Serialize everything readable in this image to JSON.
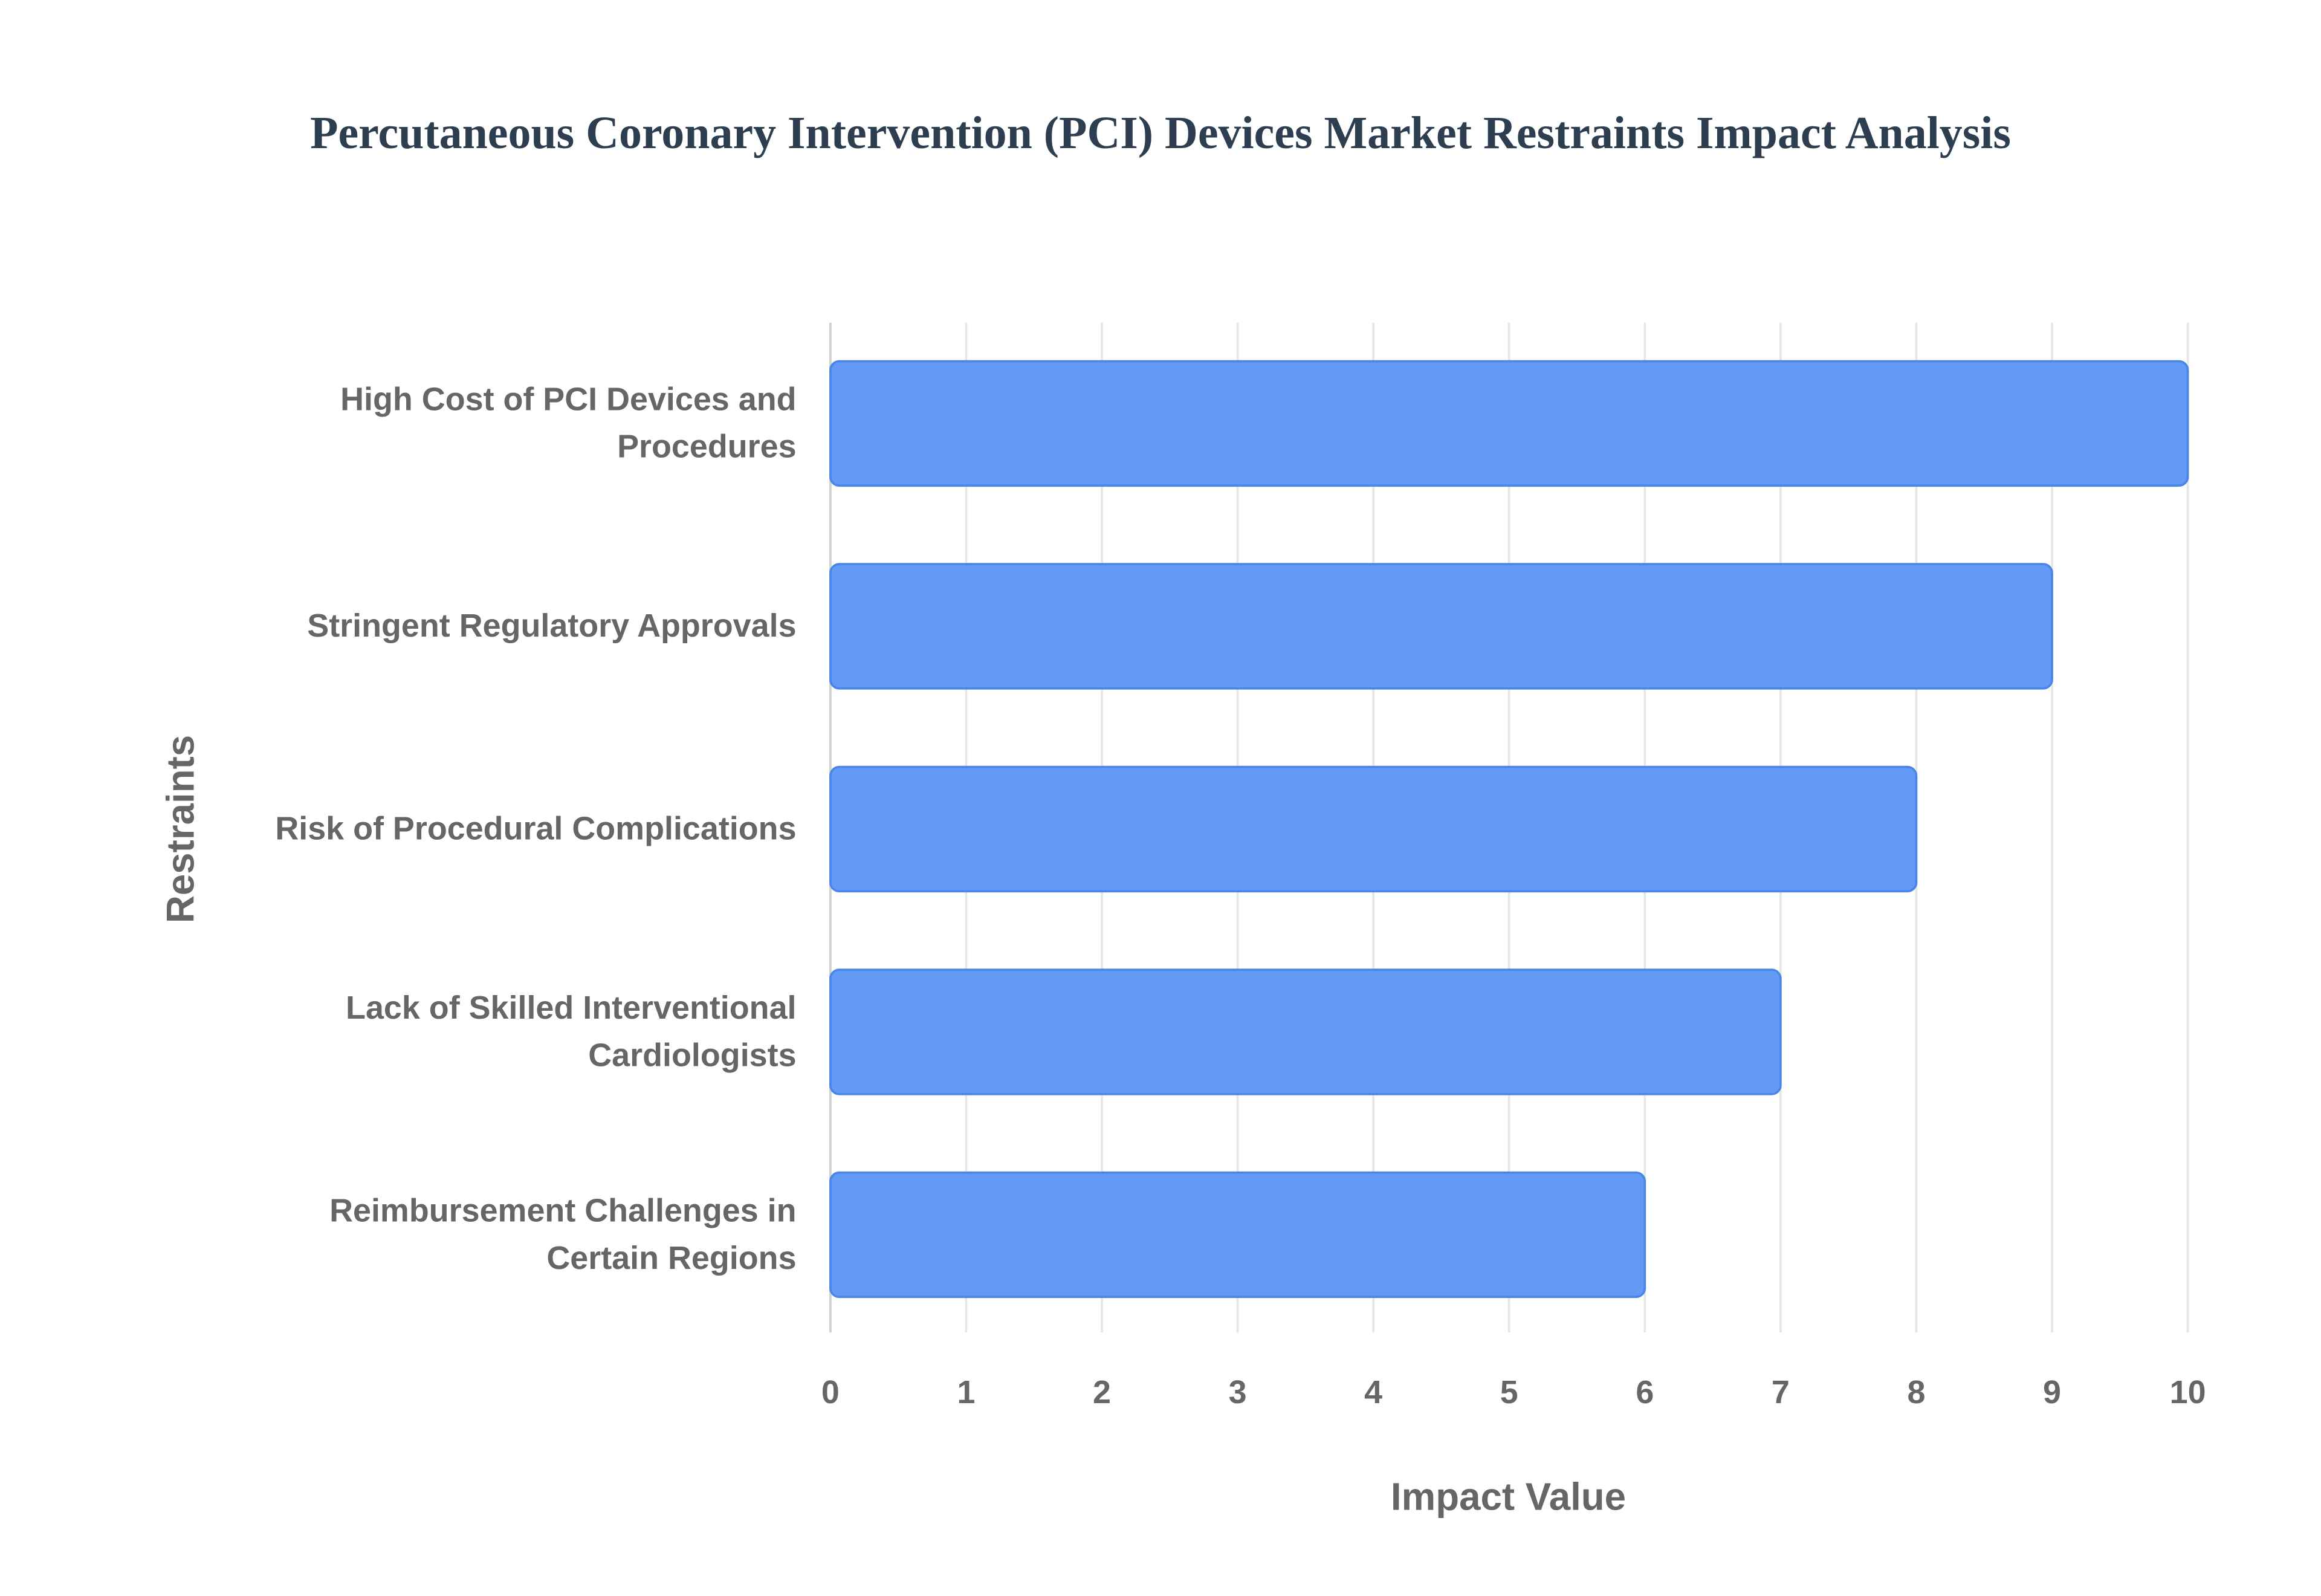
{
  "chart_data": {
    "type": "bar",
    "orientation": "horizontal",
    "title": "Percutaneous Coronary Intervention (PCI) Devices Market Restraints Impact Analysis",
    "x_label": "Impact Value",
    "y_label": "Restraints",
    "categories": [
      "High Cost of PCI Devices and Procedures",
      "Stringent Regulatory Approvals",
      "Risk of Procedural Complications",
      "Lack of Skilled Interventional Cardiologists",
      "Reimbursement Challenges in Certain Regions"
    ],
    "values": [
      10,
      9,
      8,
      7,
      6
    ],
    "color": "#5b95f5",
    "xlim": [
      0,
      10
    ],
    "xticks": [
      0,
      1,
      2,
      3,
      4,
      5,
      6,
      7,
      8,
      9,
      10
    ],
    "grid": true
  }
}
